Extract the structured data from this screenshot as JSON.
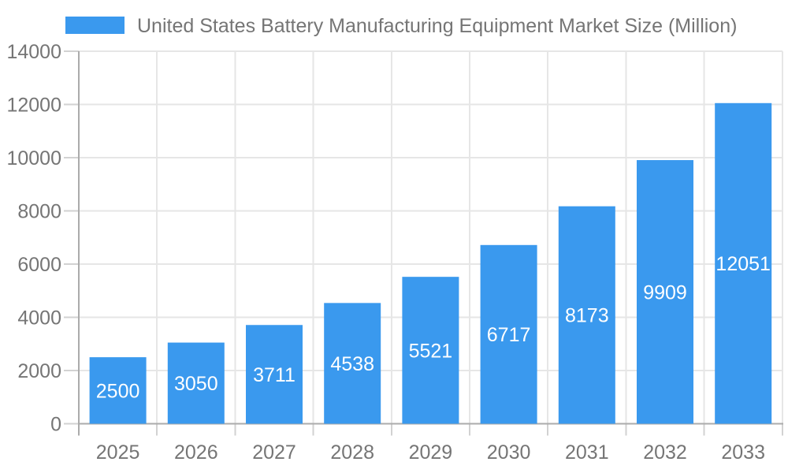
{
  "chart_data": {
    "type": "bar",
    "title": "United States Battery Manufacturing Equipment Market Size (Million)",
    "legend_entries": [
      "United States Battery Manufacturing Equipment Market Size (Million)"
    ],
    "legend_position": "top",
    "categories": [
      "2025",
      "2026",
      "2027",
      "2028",
      "2029",
      "2030",
      "2031",
      "2032",
      "2033"
    ],
    "values": [
      2500,
      3050,
      3711,
      4538,
      5521,
      6717,
      8173,
      9909,
      12051
    ],
    "value_labels_shown": true,
    "xlabel": "",
    "ylabel": "",
    "ylim": [
      0,
      14000
    ],
    "yticks": [
      0,
      2000,
      4000,
      6000,
      8000,
      10000,
      12000,
      14000
    ],
    "grid": true,
    "colors": {
      "bar": "#3A99EE",
      "value_label": "#FFFFFF",
      "axis_text": "#757575",
      "gridline": "#E6E6E6",
      "tick": "#D2D2D2",
      "axis_line": "#ABABAB",
      "background": "#FFFFFF"
    }
  }
}
